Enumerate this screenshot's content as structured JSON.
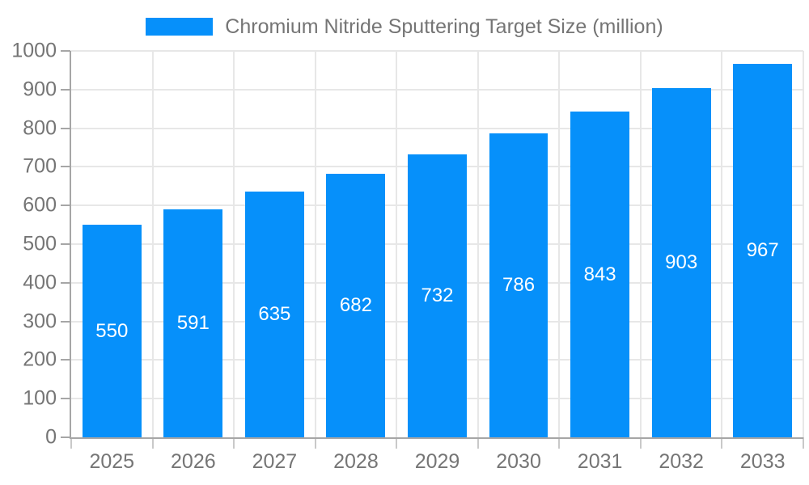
{
  "legend": {
    "label": "Chromium Nitride Sputtering Target Size (million)",
    "swatch_color": "#0690fa"
  },
  "chart_data": {
    "type": "bar",
    "title": "Chromium Nitride Sputtering Target Size (million)",
    "categories": [
      "2025",
      "2026",
      "2027",
      "2028",
      "2029",
      "2030",
      "2031",
      "2032",
      "2033"
    ],
    "values": [
      550,
      591,
      635,
      682,
      732,
      786,
      843,
      903,
      967
    ],
    "xlabel": "",
    "ylabel": "",
    "ylim": [
      0,
      1000
    ],
    "ytick_step": 100,
    "grid": true,
    "legend_position": "top",
    "bar_color": "#0690fa",
    "bar_label_color": "#ffffff",
    "axis_text_color": "#757575",
    "axis_line_color": "#a6a6a6",
    "gridline_color": "#e7e7e7",
    "background_color": "#ffffff"
  }
}
